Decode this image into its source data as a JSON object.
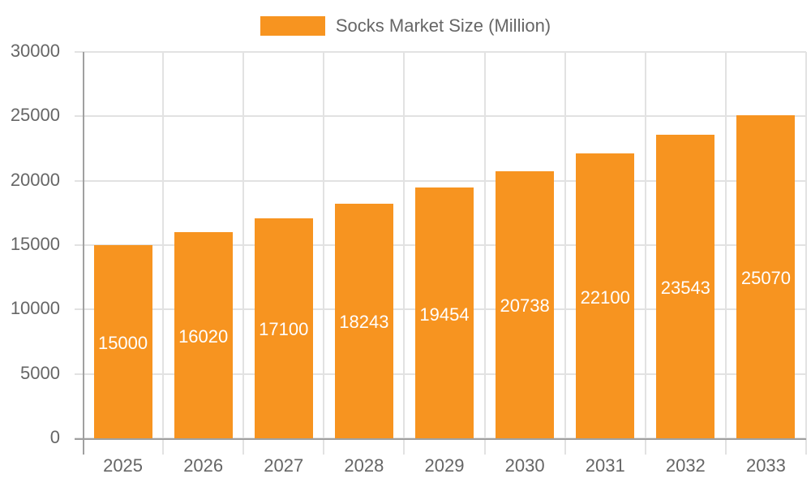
{
  "chart_data": {
    "type": "bar",
    "title": "",
    "categories": [
      "2025",
      "2026",
      "2027",
      "2028",
      "2029",
      "2030",
      "2031",
      "2032",
      "2033"
    ],
    "series": [
      {
        "name": "Socks Market Size (Million)",
        "color": "#f79420",
        "values": [
          15000,
          16020,
          17100,
          18243,
          19454,
          20738,
          22100,
          23543,
          25070
        ]
      }
    ],
    "values": [
      15000,
      16020,
      17100,
      18243,
      19454,
      20738,
      22100,
      23543,
      25070
    ],
    "data_labels": [
      "15000",
      "16020",
      "17100",
      "18243",
      "19454",
      "20738",
      "22100",
      "23543",
      "25070"
    ],
    "xlabel": "",
    "ylabel": "",
    "ylim": [
      0,
      30000
    ],
    "yticks": [
      "0",
      "5000",
      "10000",
      "15000",
      "20000",
      "25000",
      "30000"
    ],
    "grid": true,
    "legend_position": "top"
  },
  "legend": {
    "label": "Socks Market Size (Million)",
    "color": "#f79420"
  }
}
